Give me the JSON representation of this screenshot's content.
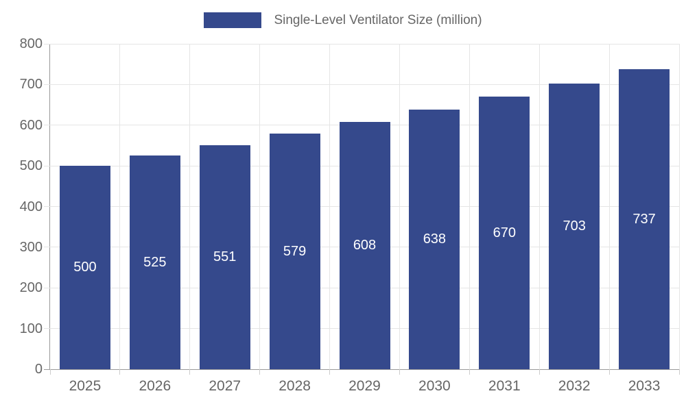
{
  "legend": {
    "label": "Single-Level Ventilator Size (million)"
  },
  "chart_data": {
    "type": "bar",
    "title": "Single-Level Ventilator Size (million)",
    "categories": [
      "2025",
      "2026",
      "2027",
      "2028",
      "2029",
      "2030",
      "2031",
      "2032",
      "2033"
    ],
    "values": [
      500,
      525,
      551,
      579,
      608,
      638,
      670,
      703,
      737
    ],
    "xlabel": "",
    "ylabel": "",
    "ylim": [
      0,
      800
    ],
    "ytick_interval": 100,
    "yticks": [
      0,
      100,
      200,
      300,
      400,
      500,
      600,
      700,
      800
    ],
    "grid": true,
    "legend_position": "top-center",
    "value_labels": "inside-center",
    "colors": {
      "bar": "#35498c",
      "value_label_text": "#ffffff",
      "axis_text": "#666666",
      "gridline": "#e5e5e5",
      "axis_line": "#999999"
    }
  }
}
